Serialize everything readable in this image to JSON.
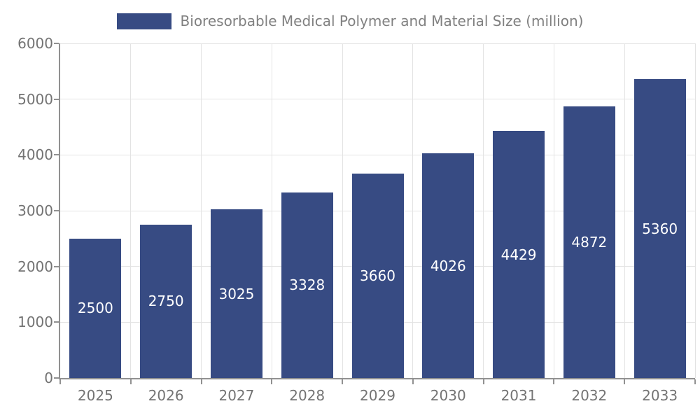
{
  "chart_data": {
    "type": "bar",
    "title": "Bioresorbable Medical Polymer and Material Size (million)",
    "categories": [
      "2025",
      "2026",
      "2027",
      "2028",
      "2029",
      "2030",
      "2031",
      "2032",
      "2033"
    ],
    "values": [
      2500,
      2750,
      3025,
      3328,
      3660,
      4026,
      4429,
      4872,
      5360
    ],
    "xlabel": "",
    "ylabel": "",
    "ylim": [
      0,
      6000
    ],
    "yticks": [
      0,
      1000,
      2000,
      3000,
      4000,
      5000,
      6000
    ],
    "grid": true,
    "legend_position": "top-center",
    "value_labels": "white text centered inside bars",
    "colors": {
      "bar": "#374B83",
      "value_label": "#ffffff",
      "axis_line": "#919191",
      "gridline": "#e3e3e3",
      "tick_label": "#737373",
      "legend_text": "#808080"
    }
  }
}
